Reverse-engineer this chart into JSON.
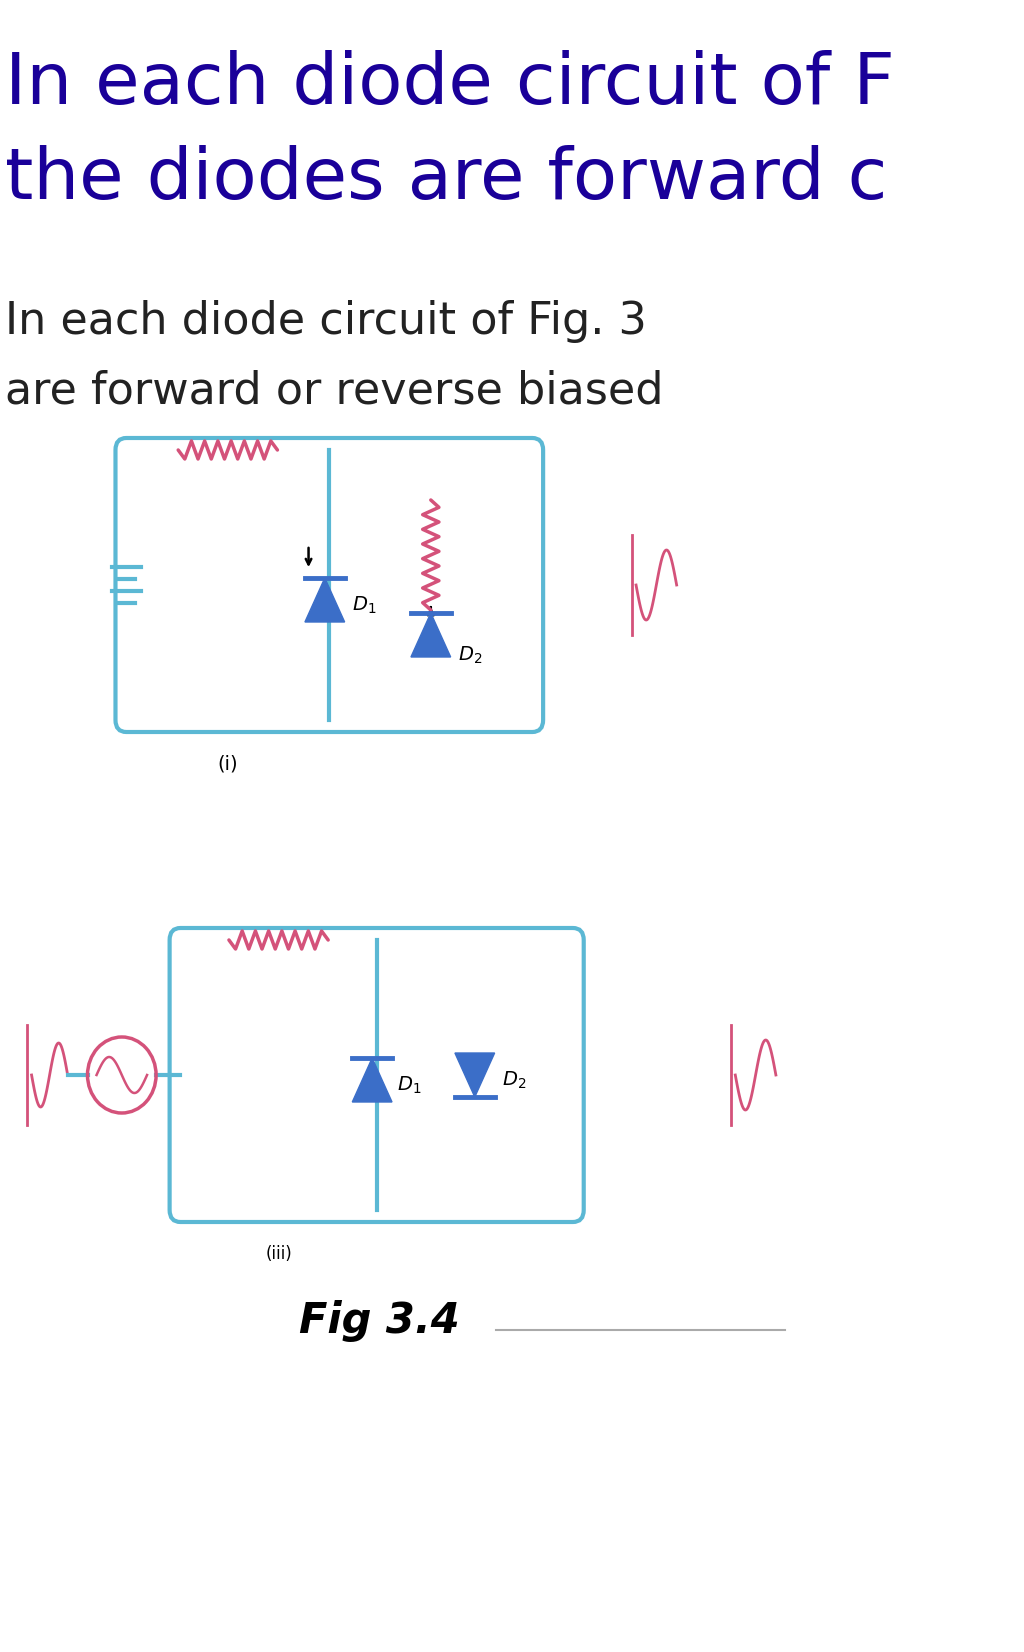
{
  "bg_color": "#ffffff",
  "title1_line1": "In each diode circuit of F",
  "title1_line2": "the diodes are forward c",
  "title1_color": "#1a0099",
  "title1_fontsize": 52,
  "title2_line1": "In each diode circuit of Fig. 3",
  "title2_line2": "are forward or reverse biased",
  "title2_color": "#222222",
  "title2_fontsize": 32,
  "circuit_color": "#5BB8D4",
  "resistor_color": "#D4527A",
  "diode_color": "#3B6EC8",
  "label_color": "#000000",
  "fig_label": "Fig 3.4",
  "sub_label_i": "(i)",
  "sub_label_iii": "(iii)"
}
